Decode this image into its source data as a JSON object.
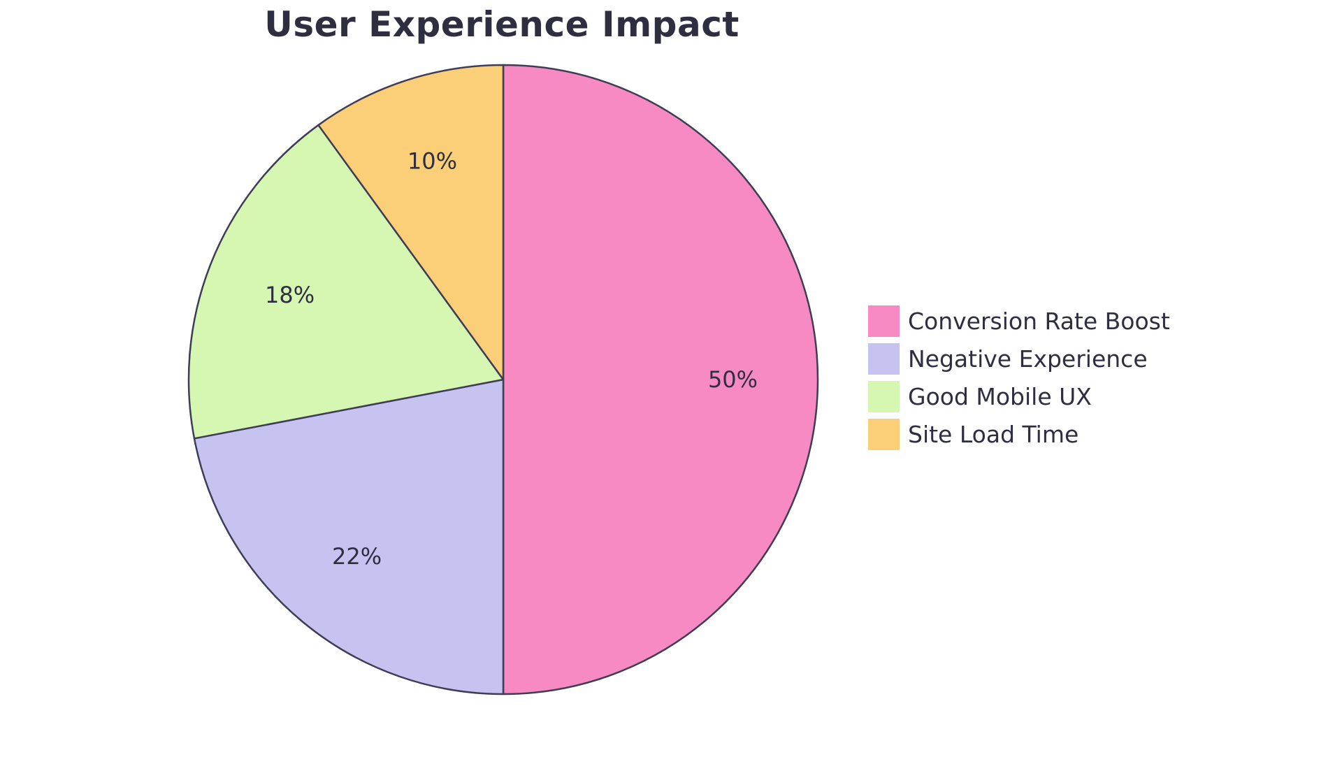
{
  "chart_data": {
    "type": "pie",
    "title": "User Experience Impact",
    "labels": [
      "Conversion Rate Boost",
      "Negative Experience",
      "Good Mobile UX",
      "Site Load Time"
    ],
    "values": [
      50,
      22,
      18,
      10
    ],
    "percent_labels": [
      "50%",
      "22%",
      "18%",
      "10%"
    ],
    "colors": [
      "#F78AC2",
      "#C6C3F1",
      "#D5F7B2",
      "#FACF78"
    ],
    "stroke_color": "#3F3D56",
    "label_color": "#2F2E41",
    "title_color": "#2F2E41",
    "legend_position": "right",
    "start_angle_deg": 0,
    "direction": "clockwise"
  }
}
